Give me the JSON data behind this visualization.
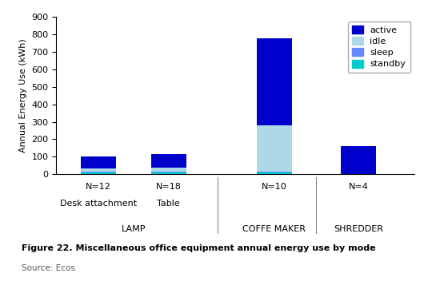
{
  "bar_labels": [
    "N=12",
    "N=18",
    "N=10",
    "N=4"
  ],
  "sub_labels": [
    "Desk attachment",
    "Table",
    "",
    ""
  ],
  "modes": [
    "standby",
    "sleep",
    "idle",
    "active"
  ],
  "colors": [
    "#00cccc",
    "#6688ff",
    "#add8e6",
    "#0000cc"
  ],
  "legend_modes": [
    "active",
    "idle",
    "sleep",
    "standby"
  ],
  "legend_colors": [
    "#0000cc",
    "#add8e6",
    "#6688ff",
    "#00cccc"
  ],
  "data": {
    "standby": [
      8,
      8,
      8,
      0
    ],
    "sleep": [
      5,
      5,
      5,
      0
    ],
    "idle": [
      20,
      25,
      265,
      0
    ],
    "active": [
      67,
      75,
      497,
      163
    ]
  },
  "ylim": [
    0,
    900
  ],
  "yticks": [
    0,
    100,
    200,
    300,
    400,
    500,
    600,
    700,
    800,
    900
  ],
  "ylabel": "Annual Energy Use (kWh)",
  "title": "Figure 22. Miscellaneous office equipment annual energy use by mode",
  "source": "Source: Ecos",
  "bar_width": 0.5,
  "x_positions": [
    0.5,
    1.5,
    3.0,
    4.2
  ],
  "xlim": [
    -0.1,
    5.0
  ],
  "lamp_x": 1.0,
  "coffee_x": 3.0,
  "shredder_x": 4.2,
  "sep1_x": 2.2,
  "sep2_x": 3.6
}
